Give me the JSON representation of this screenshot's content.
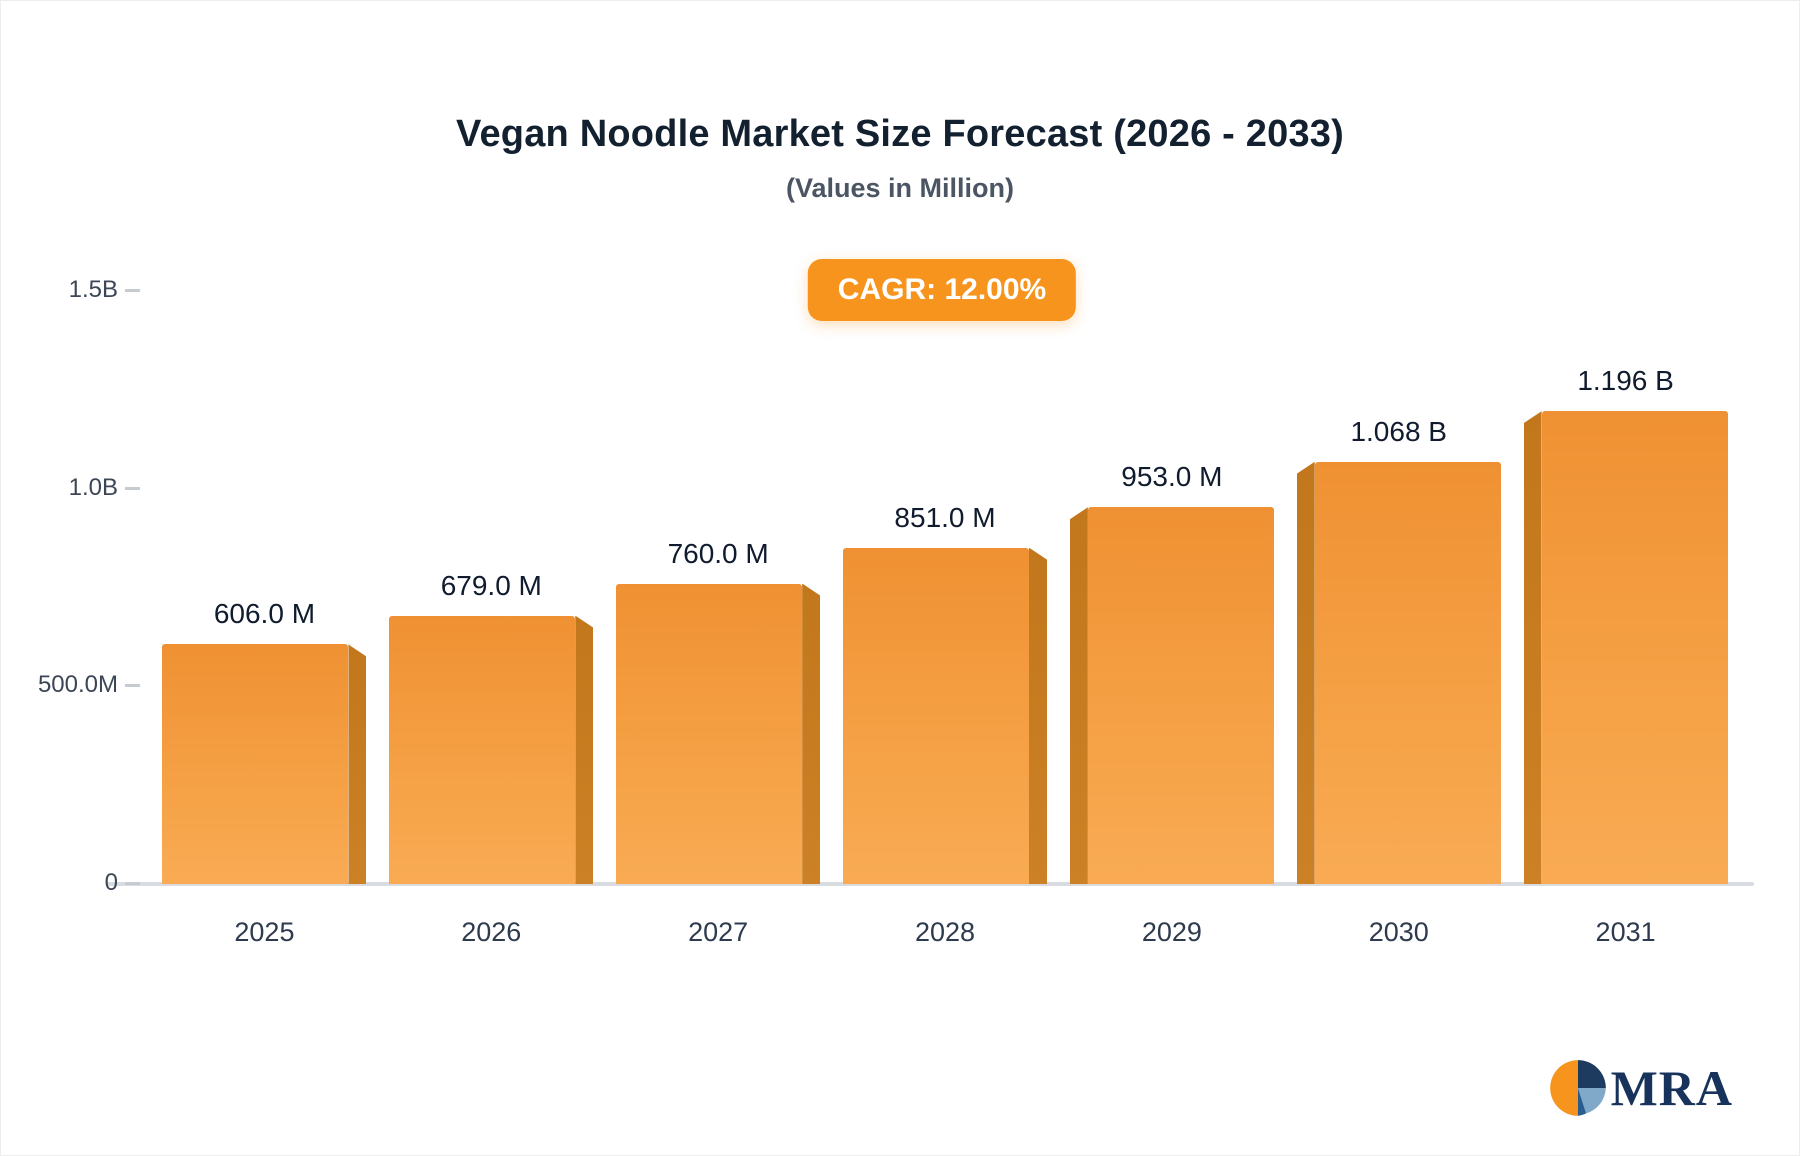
{
  "header": {
    "title": "Vegan Noodle Market Size Forecast (2026 - 2033)",
    "subtitle": "(Values in Million)",
    "badge_label": "CAGR: 12.00%"
  },
  "logo": {
    "text": "MRA",
    "icon": "pie-chart-icon"
  },
  "colors": {
    "accent": "#f7941d",
    "bar_top": "#ef9133",
    "bar_bottom": "#f9ab54",
    "bar_side": "#c77a1e",
    "axis_line": "#d8dbdf"
  },
  "chart_data": {
    "type": "bar",
    "title": "Vegan Noodle Market Size Forecast (2026 - 2033)",
    "subtitle": "(Values in Million)",
    "annotation": "CAGR: 12.00%",
    "categories": [
      "2025",
      "2026",
      "2027",
      "2028",
      "2029",
      "2030",
      "2031"
    ],
    "values": [
      606,
      679,
      760,
      851,
      953,
      1068,
      1196
    ],
    "value_labels": [
      "606.0 M",
      "679.0 M",
      "760.0 M",
      "851.0 M",
      "953.0 M",
      "1.068 B",
      "1.196 B"
    ],
    "unit": "Million",
    "xlabel": "",
    "ylabel": "",
    "ylim": [
      0,
      1500
    ],
    "yticks": [
      {
        "value": 0,
        "label": "0"
      },
      {
        "value": 500,
        "label": "500.0M"
      },
      {
        "value": 1000,
        "label": "1.0B"
      },
      {
        "value": 1500,
        "label": "1.5B"
      }
    ],
    "grid": false,
    "legend": false
  }
}
